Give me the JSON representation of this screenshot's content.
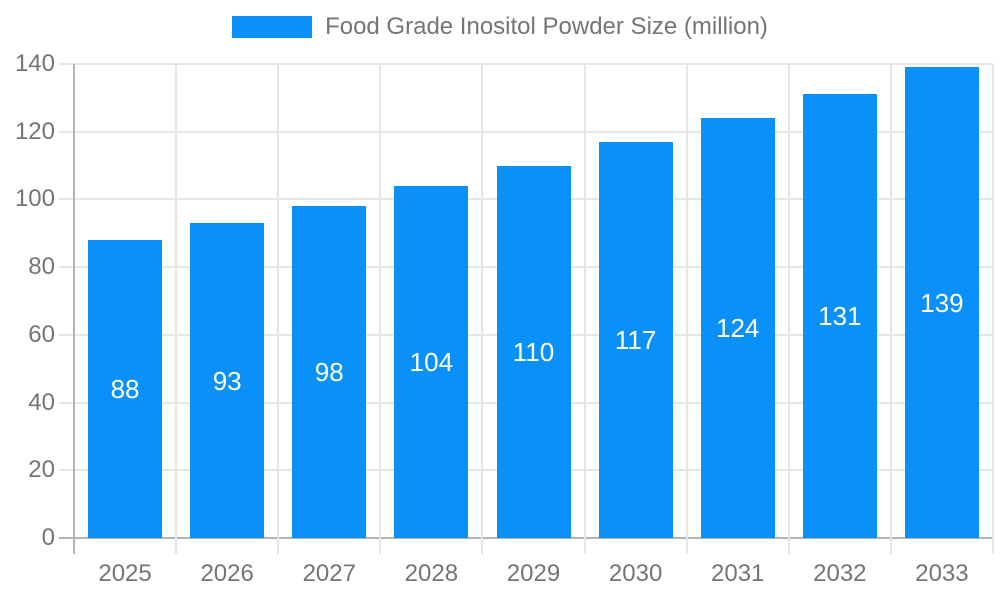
{
  "chart_data": {
    "type": "bar",
    "title": "Food Grade Inositol Powder Size (million)",
    "categories": [
      "2025",
      "2026",
      "2027",
      "2028",
      "2029",
      "2030",
      "2031",
      "2032",
      "2033"
    ],
    "values": [
      88,
      93,
      98,
      104,
      110,
      117,
      124,
      131,
      139
    ],
    "yticks": [
      0,
      20,
      40,
      60,
      80,
      100,
      120,
      140
    ],
    "ylim": [
      0,
      140
    ],
    "xlabel": "",
    "ylabel": "",
    "legend_position": "top-center",
    "grid": true,
    "value_labels": "inside-center",
    "colors": {
      "bar": "#0991f9",
      "grid_line": "#e6e6e6",
      "axis_line": "#b3b3b3",
      "tick_label": "#757575",
      "legend_text": "#757575",
      "value_label": "#ffffff",
      "background": "#ffffff"
    }
  }
}
